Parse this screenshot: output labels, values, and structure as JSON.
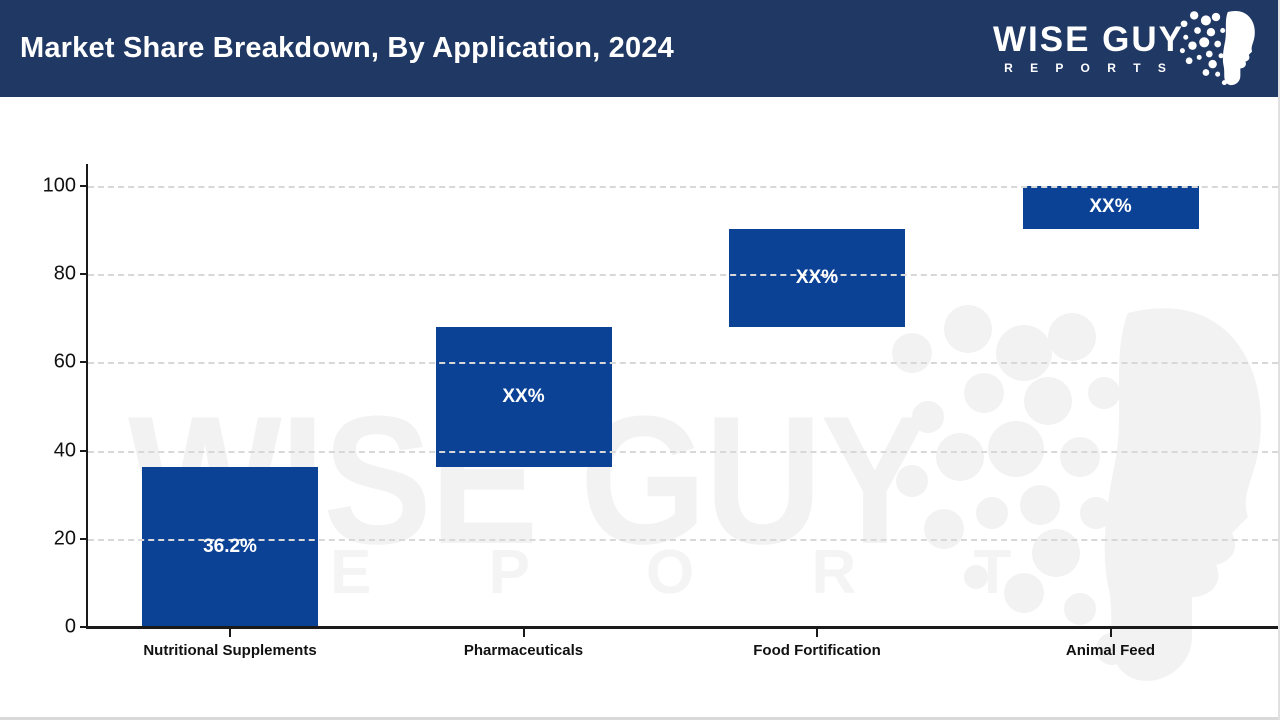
{
  "header": {
    "title": "Market Share Breakdown, By Application, 2024",
    "logo": {
      "line1": "WISE GUY",
      "line2": "R E P O R T S"
    }
  },
  "watermark": {
    "line1": "WISE GUY",
    "line2": "R E P O R T S"
  },
  "colors": {
    "header_bg": "#1f3864",
    "bar": "#0b4296",
    "grid": "#d8d8d8",
    "axis": "#1a1a1a",
    "bar_label": "#ffffff",
    "watermark": "#f2f2f2"
  },
  "chart_data": {
    "type": "bar",
    "subtype": "floating-segment-waterfall",
    "title": "Market Share Breakdown, By Application, 2024",
    "categories": [
      "Nutritional Supplements",
      "Pharmaceuticals",
      "Food Fortification",
      "Animal Feed"
    ],
    "bars": [
      {
        "category": "Nutritional Supplements",
        "start": 0,
        "end": 36.2,
        "label": "36.2%"
      },
      {
        "category": "Pharmaceuticals",
        "start": 36.2,
        "end": 68,
        "label": "XX%"
      },
      {
        "category": "Food Fortification",
        "start": 68,
        "end": 90.3,
        "label": "XX%"
      },
      {
        "category": "Animal Feed",
        "start": 90.3,
        "end": 100,
        "label": "XX%"
      }
    ],
    "xlabel": "",
    "ylabel": "",
    "ylim": [
      0,
      100
    ],
    "yticks": [
      0,
      20,
      40,
      60,
      80,
      100
    ],
    "grid": "horizontal-dashed",
    "legend": "none"
  }
}
